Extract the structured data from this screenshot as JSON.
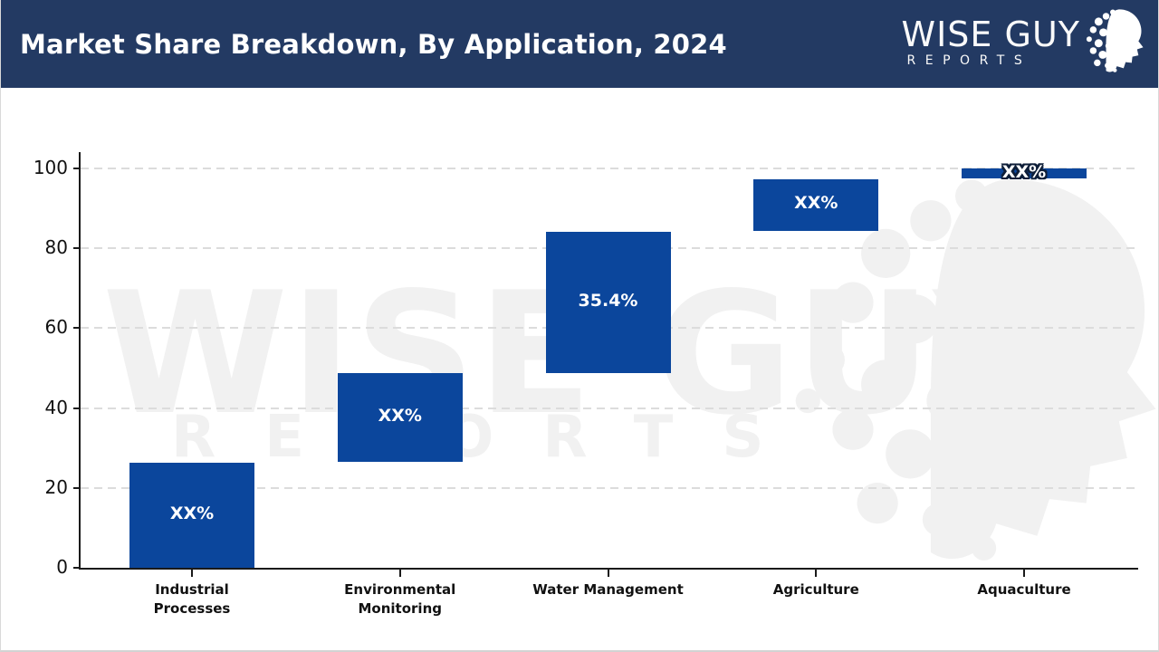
{
  "header": {
    "title": "Market Share Breakdown, By Application, 2024",
    "logo": {
      "name": "WISE GUY",
      "sub": "REPORTS"
    }
  },
  "watermark": {
    "line1": "WISE GUY",
    "line2": "REPORTS"
  },
  "colors": {
    "header_bg": "#233A63",
    "bar": "#0B469C",
    "grid": "#DCDCDC",
    "axis": "#1A1A1A",
    "watermark": "#F1F1F1",
    "bar_label": "#FFFFFF",
    "thin_bar_label_outline": "#0E1E38"
  },
  "chart_data": {
    "type": "bar",
    "variant": "waterfall",
    "title": "Market Share Breakdown, By Application, 2024",
    "unit": "%",
    "categories": [
      "Industrial Processes",
      "Environmental Monitoring",
      "Water Management",
      "Agriculture",
      "Aquaculture"
    ],
    "xticklabels": [
      "Industrial\nProcesses",
      "Environmental\nMonitoring",
      "Water Management",
      "Agriculture",
      "Aquaculture"
    ],
    "segments": [
      {
        "category": "Industrial Processes",
        "start": 0,
        "end": 26.3,
        "label": "XX%"
      },
      {
        "category": "Environmental Monitoring",
        "start": 26.6,
        "end": 48.8,
        "label": "XX%"
      },
      {
        "category": "Water Management",
        "start": 48.8,
        "end": 84.2,
        "label": "35.4%"
      },
      {
        "category": "Agriculture",
        "start": 84.4,
        "end": 97.3,
        "label": "XX%"
      },
      {
        "category": "Aquaculture",
        "start": 97.4,
        "end": 100.1,
        "label": "XX%"
      }
    ],
    "yticks": [
      0,
      20,
      40,
      60,
      80,
      100
    ],
    "ylim": [
      0,
      104
    ],
    "grid": "horizontal dashed",
    "legend": "none",
    "bar_color": "#0B469C"
  }
}
